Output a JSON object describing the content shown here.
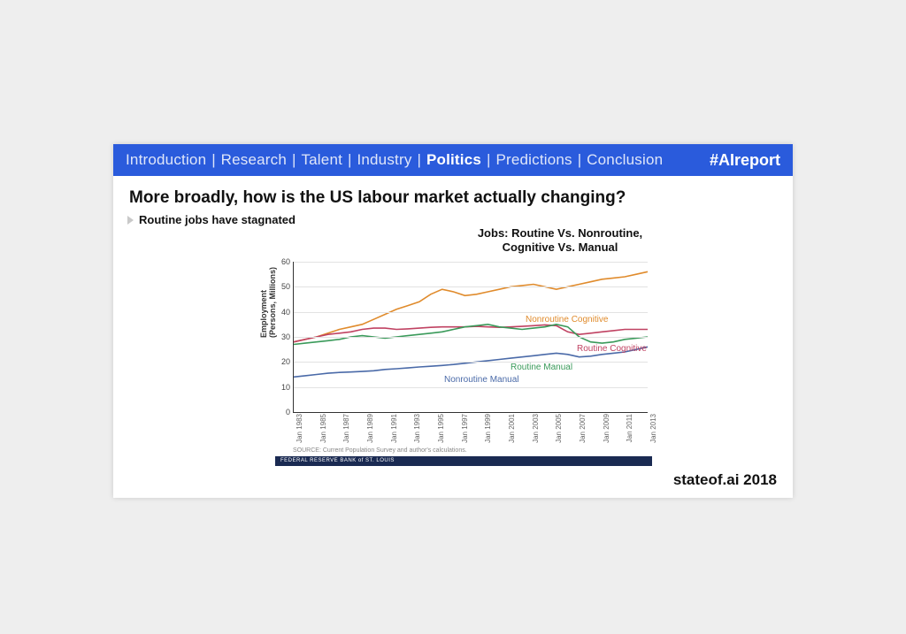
{
  "nav": {
    "background": "#2a5bdc",
    "tabs": [
      "Introduction",
      "Research",
      "Talent",
      "Industry",
      "Politics",
      "Predictions",
      "Conclusion"
    ],
    "active_index": 4,
    "hashtag": "#AIreport"
  },
  "title": "More broadly, how is the US labour market actually changing?",
  "subtitle": "Routine jobs have stagnated",
  "credit": "stateof.ai 2018",
  "chart": {
    "type": "line",
    "title": "Jobs: Routine Vs. Nonroutine, Cognitive Vs. Manual",
    "yaxis_label": "Employment\n(Persons, Millions)",
    "ylim": [
      0,
      60
    ],
    "yticks": [
      0,
      10,
      20,
      30,
      40,
      50,
      60
    ],
    "grid_color": "#e2e2e2",
    "axis_color": "#333333",
    "background_color": "#ffffff",
    "line_width": 1.6,
    "xticks": [
      "Jan 1983",
      "Jan 1985",
      "Jan 1987",
      "Jan 1989",
      "Jan 1991",
      "Jan 1993",
      "Jan 1995",
      "Jan 1997",
      "Jan 1999",
      "Jan 2001",
      "Jan 2003",
      "Jan 2005",
      "Jan 2007",
      "Jan 2009",
      "Jan 2011",
      "Jan 2013"
    ],
    "series": [
      {
        "name": "Nonroutine Cognitive",
        "color": "#e08b2c",
        "label_xy": [
          262,
          60
        ],
        "values": [
          28,
          29,
          30,
          31.5,
          33,
          34,
          35,
          37,
          39,
          41,
          42.5,
          44,
          47,
          49,
          48,
          46.5,
          47,
          48,
          49,
          50,
          50.5,
          51,
          50,
          49,
          50,
          51,
          52,
          53,
          53.5,
          54,
          55,
          56
        ]
      },
      {
        "name": "Routine Cognitive",
        "color": "#c04262",
        "label_xy": [
          320,
          93
        ],
        "values": [
          28,
          29,
          30,
          31,
          31.5,
          32,
          33,
          33.5,
          33.5,
          33,
          33.2,
          33.5,
          33.8,
          34,
          34,
          34,
          34.2,
          34,
          33.8,
          34,
          34.2,
          34.5,
          34.8,
          34.5,
          32,
          31,
          31.5,
          32,
          32.5,
          33,
          33,
          33
        ]
      },
      {
        "name": "Routine Manual",
        "color": "#3a9a5a",
        "label_xy": [
          245,
          114
        ],
        "values": [
          27,
          27.5,
          28,
          28.5,
          29,
          30,
          30.5,
          30,
          29.5,
          30,
          30.5,
          31,
          31.5,
          32,
          33,
          34,
          34.5,
          35,
          34,
          33.5,
          33,
          33.5,
          34,
          35,
          34,
          30,
          28,
          27.5,
          28,
          29,
          29.5,
          30
        ]
      },
      {
        "name": "Nonroutine Manual",
        "color": "#4a6aa8",
        "label_xy": [
          170,
          128
        ],
        "values": [
          14,
          14.5,
          15,
          15.5,
          15.8,
          16,
          16.2,
          16.5,
          17,
          17.3,
          17.6,
          18,
          18.3,
          18.6,
          19,
          19.5,
          20,
          20.5,
          21,
          21.5,
          22,
          22.5,
          23,
          23.5,
          23,
          22,
          22.3,
          23,
          23.5,
          24,
          25,
          26
        ]
      }
    ],
    "source_note": "SOURCE: Current Population Survey and author's calculations.",
    "footer_bar": {
      "text": "FEDERAL RESERVE BANK of ST. LOUIS",
      "background": "#1a2a52"
    }
  }
}
